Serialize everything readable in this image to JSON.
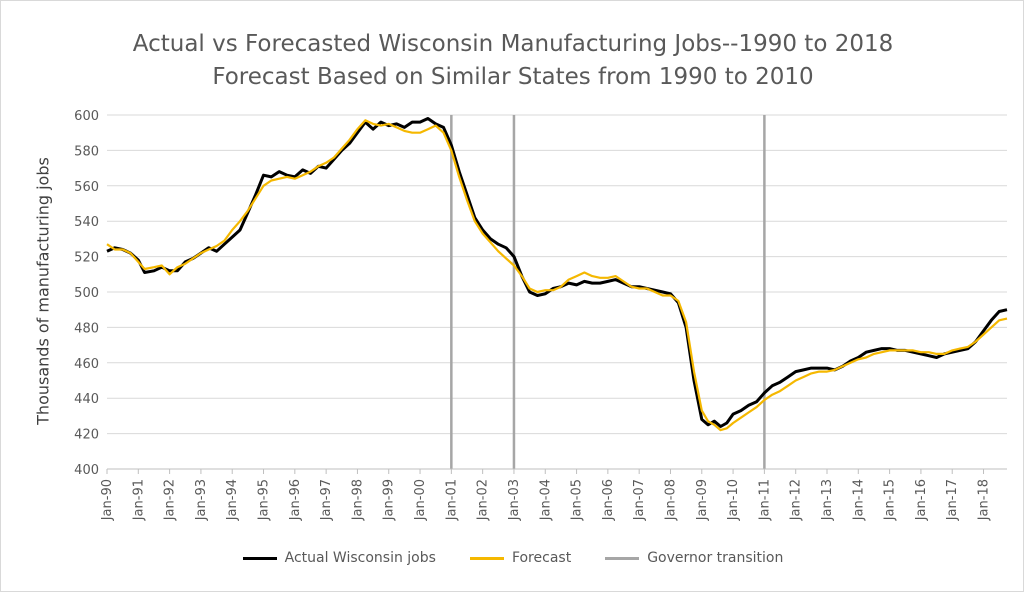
{
  "chart_data": {
    "type": "line",
    "title": "Actual vs Forecasted Wisconsin Manufacturing Jobs--1990 to 2018",
    "subtitle": "Forecast Based on Similar States from 1990 to 2010",
    "xlabel": "",
    "ylabel": "Thousands of manufacturing jobs",
    "x_tick_labels": [
      "Jan-90",
      "Jan-91",
      "Jan-92",
      "Jan-93",
      "Jan-94",
      "Jan-95",
      "Jan-96",
      "Jan-97",
      "Jan-98",
      "Jan-99",
      "Jan-00",
      "Jan-01",
      "Jan-02",
      "Jan-03",
      "Jan-04",
      "Jan-05",
      "Jan-06",
      "Jan-07",
      "Jan-08",
      "Jan-09",
      "Jan-10",
      "Jan-11",
      "Jan-12",
      "Jan-13",
      "Jan-14",
      "Jan-15",
      "Jan-16",
      "Jan-17",
      "Jan-18"
    ],
    "ylim": [
      400,
      600
    ],
    "y_ticks": [
      400,
      420,
      440,
      460,
      480,
      500,
      520,
      540,
      560,
      580,
      600
    ],
    "xlim": [
      1990.0,
      2018.75
    ],
    "grid": true,
    "legend_position": "bottom",
    "series": [
      {
        "name": "Actual Wisconsin jobs",
        "color": "#000000",
        "points": [
          [
            1990.0,
            523
          ],
          [
            1990.25,
            525
          ],
          [
            1990.5,
            524
          ],
          [
            1990.75,
            522
          ],
          [
            1991.0,
            518
          ],
          [
            1991.2,
            511
          ],
          [
            1991.5,
            512
          ],
          [
            1991.75,
            514
          ],
          [
            1992.0,
            512
          ],
          [
            1992.25,
            512
          ],
          [
            1992.5,
            517
          ],
          [
            1992.75,
            519
          ],
          [
            1993.0,
            522
          ],
          [
            1993.25,
            525
          ],
          [
            1993.5,
            523
          ],
          [
            1993.75,
            527
          ],
          [
            1994.0,
            531
          ],
          [
            1994.25,
            535
          ],
          [
            1994.5,
            545
          ],
          [
            1994.75,
            555
          ],
          [
            1995.0,
            566
          ],
          [
            1995.25,
            565
          ],
          [
            1995.5,
            568
          ],
          [
            1995.75,
            566
          ],
          [
            1996.0,
            565
          ],
          [
            1996.25,
            569
          ],
          [
            1996.5,
            567
          ],
          [
            1996.75,
            571
          ],
          [
            1997.0,
            570
          ],
          [
            1997.25,
            575
          ],
          [
            1997.5,
            580
          ],
          [
            1997.75,
            584
          ],
          [
            1998.0,
            590
          ],
          [
            1998.25,
            596
          ],
          [
            1998.5,
            592
          ],
          [
            1998.75,
            596
          ],
          [
            1999.0,
            594
          ],
          [
            1999.25,
            595
          ],
          [
            1999.5,
            593
          ],
          [
            1999.75,
            596
          ],
          [
            2000.0,
            596
          ],
          [
            2000.25,
            598
          ],
          [
            2000.5,
            595
          ],
          [
            2000.75,
            593
          ],
          [
            2001.0,
            583
          ],
          [
            2001.25,
            568
          ],
          [
            2001.5,
            555
          ],
          [
            2001.75,
            542
          ],
          [
            2002.0,
            535
          ],
          [
            2002.25,
            530
          ],
          [
            2002.5,
            527
          ],
          [
            2002.75,
            525
          ],
          [
            2003.0,
            520
          ],
          [
            2003.25,
            509
          ],
          [
            2003.5,
            500
          ],
          [
            2003.75,
            498
          ],
          [
            2004.0,
            499
          ],
          [
            2004.25,
            502
          ],
          [
            2004.5,
            503
          ],
          [
            2004.75,
            505
          ],
          [
            2005.0,
            504
          ],
          [
            2005.25,
            506
          ],
          [
            2005.5,
            505
          ],
          [
            2005.75,
            505
          ],
          [
            2006.0,
            506
          ],
          [
            2006.25,
            507
          ],
          [
            2006.5,
            505
          ],
          [
            2006.75,
            503
          ],
          [
            2007.0,
            503
          ],
          [
            2007.25,
            502
          ],
          [
            2007.5,
            501
          ],
          [
            2007.75,
            500
          ],
          [
            2008.0,
            499
          ],
          [
            2008.25,
            494
          ],
          [
            2008.5,
            480
          ],
          [
            2008.75,
            450
          ],
          [
            2009.0,
            428
          ],
          [
            2009.2,
            425
          ],
          [
            2009.4,
            427
          ],
          [
            2009.6,
            424
          ],
          [
            2009.8,
            426
          ],
          [
            2010.0,
            431
          ],
          [
            2010.25,
            433
          ],
          [
            2010.5,
            436
          ],
          [
            2010.75,
            438
          ],
          [
            2011.0,
            443
          ],
          [
            2011.25,
            447
          ],
          [
            2011.5,
            449
          ],
          [
            2011.75,
            452
          ],
          [
            2012.0,
            455
          ],
          [
            2012.25,
            456
          ],
          [
            2012.5,
            457
          ],
          [
            2012.75,
            457
          ],
          [
            2013.0,
            457
          ],
          [
            2013.25,
            456
          ],
          [
            2013.5,
            458
          ],
          [
            2013.75,
            461
          ],
          [
            2014.0,
            463
          ],
          [
            2014.25,
            466
          ],
          [
            2014.5,
            467
          ],
          [
            2014.75,
            468
          ],
          [
            2015.0,
            468
          ],
          [
            2015.25,
            467
          ],
          [
            2015.5,
            467
          ],
          [
            2015.75,
            466
          ],
          [
            2016.0,
            465
          ],
          [
            2016.25,
            464
          ],
          [
            2016.5,
            463
          ],
          [
            2016.75,
            465
          ],
          [
            2017.0,
            466
          ],
          [
            2017.25,
            467
          ],
          [
            2017.5,
            468
          ],
          [
            2017.75,
            472
          ],
          [
            2018.0,
            478
          ],
          [
            2018.25,
            484
          ],
          [
            2018.5,
            489
          ],
          [
            2018.75,
            490
          ]
        ]
      },
      {
        "name": "Forecast",
        "color": "#F5B800",
        "points": [
          [
            1990.0,
            527
          ],
          [
            1990.25,
            524
          ],
          [
            1990.5,
            524
          ],
          [
            1990.75,
            522
          ],
          [
            1991.0,
            517
          ],
          [
            1991.2,
            513
          ],
          [
            1991.5,
            514
          ],
          [
            1991.75,
            515
          ],
          [
            1992.0,
            510
          ],
          [
            1992.25,
            514
          ],
          [
            1992.5,
            516
          ],
          [
            1992.75,
            519
          ],
          [
            1993.0,
            522
          ],
          [
            1993.25,
            524
          ],
          [
            1993.5,
            526
          ],
          [
            1993.75,
            529
          ],
          [
            1994.0,
            535
          ],
          [
            1994.25,
            540
          ],
          [
            1994.5,
            546
          ],
          [
            1994.75,
            553
          ],
          [
            1995.0,
            560
          ],
          [
            1995.25,
            563
          ],
          [
            1995.5,
            564
          ],
          [
            1995.75,
            565
          ],
          [
            1996.0,
            564
          ],
          [
            1996.25,
            566
          ],
          [
            1996.5,
            568
          ],
          [
            1996.75,
            571
          ],
          [
            1997.0,
            573
          ],
          [
            1997.25,
            576
          ],
          [
            1997.5,
            581
          ],
          [
            1997.75,
            586
          ],
          [
            1998.0,
            592
          ],
          [
            1998.25,
            597
          ],
          [
            1998.5,
            595
          ],
          [
            1998.75,
            594
          ],
          [
            1999.0,
            595
          ],
          [
            1999.25,
            593
          ],
          [
            1999.5,
            591
          ],
          [
            1999.75,
            590
          ],
          [
            2000.0,
            590
          ],
          [
            2000.25,
            592
          ],
          [
            2000.5,
            594
          ],
          [
            2000.75,
            590
          ],
          [
            2001.0,
            580
          ],
          [
            2001.25,
            565
          ],
          [
            2001.5,
            552
          ],
          [
            2001.75,
            540
          ],
          [
            2002.0,
            533
          ],
          [
            2002.25,
            528
          ],
          [
            2002.5,
            523
          ],
          [
            2002.75,
            519
          ],
          [
            2003.0,
            515
          ],
          [
            2003.25,
            509
          ],
          [
            2003.5,
            502
          ],
          [
            2003.75,
            500
          ],
          [
            2004.0,
            501
          ],
          [
            2004.25,
            501
          ],
          [
            2004.5,
            503
          ],
          [
            2004.75,
            507
          ],
          [
            2005.0,
            509
          ],
          [
            2005.25,
            511
          ],
          [
            2005.5,
            509
          ],
          [
            2005.75,
            508
          ],
          [
            2006.0,
            508
          ],
          [
            2006.25,
            509
          ],
          [
            2006.5,
            506
          ],
          [
            2006.75,
            503
          ],
          [
            2007.0,
            502
          ],
          [
            2007.25,
            502
          ],
          [
            2007.5,
            500
          ],
          [
            2007.75,
            498
          ],
          [
            2008.0,
            498
          ],
          [
            2008.25,
            495
          ],
          [
            2008.5,
            483
          ],
          [
            2008.75,
            455
          ],
          [
            2009.0,
            433
          ],
          [
            2009.2,
            427
          ],
          [
            2009.4,
            425
          ],
          [
            2009.6,
            422
          ],
          [
            2009.8,
            423
          ],
          [
            2010.0,
            426
          ],
          [
            2010.25,
            429
          ],
          [
            2010.5,
            432
          ],
          [
            2010.75,
            435
          ],
          [
            2011.0,
            439
          ],
          [
            2011.25,
            442
          ],
          [
            2011.5,
            444
          ],
          [
            2011.75,
            447
          ],
          [
            2012.0,
            450
          ],
          [
            2012.25,
            452
          ],
          [
            2012.5,
            454
          ],
          [
            2012.75,
            455
          ],
          [
            2013.0,
            455
          ],
          [
            2013.25,
            456
          ],
          [
            2013.5,
            458
          ],
          [
            2013.75,
            460
          ],
          [
            2014.0,
            462
          ],
          [
            2014.25,
            463
          ],
          [
            2014.5,
            465
          ],
          [
            2014.75,
            466
          ],
          [
            2015.0,
            467
          ],
          [
            2015.25,
            467
          ],
          [
            2015.5,
            467
          ],
          [
            2015.75,
            467
          ],
          [
            2016.0,
            466
          ],
          [
            2016.25,
            466
          ],
          [
            2016.5,
            465
          ],
          [
            2016.75,
            465
          ],
          [
            2017.0,
            467
          ],
          [
            2017.25,
            468
          ],
          [
            2017.5,
            469
          ],
          [
            2017.75,
            472
          ],
          [
            2018.0,
            476
          ],
          [
            2018.25,
            480
          ],
          [
            2018.5,
            484
          ],
          [
            2018.75,
            485
          ]
        ]
      }
    ],
    "vertical_markers": {
      "name": "Governor transition",
      "color": "#A6A6A6",
      "x": [
        2001.0,
        2003.0,
        2011.0
      ]
    }
  }
}
